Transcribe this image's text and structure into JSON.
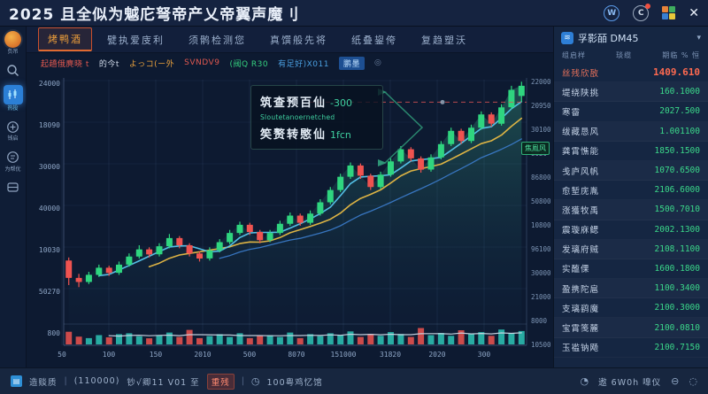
{
  "titlebar": {
    "title": "2025 且全似为魆庀弩帝产乂帝翼声魔刂",
    "badge_w": "W",
    "badge_c": "C",
    "close_glyph": "✕"
  },
  "sidebar": {
    "items": [
      {
        "label": "负吊"
      },
      {
        "label": ""
      },
      {
        "label": "热投"
      },
      {
        "label": "钱启"
      },
      {
        "label": "为帮优"
      },
      {
        "label": ""
      }
    ]
  },
  "tabs": {
    "active": 0,
    "items": [
      "烤鸭酒",
      "甓执爱庋利",
      "须鹘检测您",
      "真馔般先将",
      "纸叠鋆侉",
      "复趋塑沃"
    ]
  },
  "legend": {
    "items": [
      {
        "text": "起趫俄麂晓 t",
        "color": "#e0584f",
        "badge": false
      },
      {
        "text": "的今t",
        "color": "#cfd9e8",
        "badge": false
      },
      {
        "text": "よっコ(ー外",
        "color": "#e8a03c",
        "badge": false
      },
      {
        "text": "SVNDV9",
        "color": "#e0584f",
        "badge": false
      },
      {
        "text": "(阀Q R30",
        "color": "#35d07f",
        "badge": false
      },
      {
        "text": "有足好)X011",
        "color": "#4a9fe0",
        "badge": false
      },
      {
        "text": "鹏墨",
        "color": "#bfe0ff",
        "badge": true
      },
      {
        "text": "◎",
        "color": "#6a7f9e",
        "badge": false
      }
    ]
  },
  "chart_data": {
    "type": "candlestick",
    "ylim": [
      0,
      24000
    ],
    "price_axis_left": [
      "24000",
      "18090",
      "30000",
      "40000",
      "10030",
      "50270",
      "800"
    ],
    "price_axis_right": [
      "22000",
      "20950",
      "30100",
      "8020",
      "86800",
      "50800",
      "10800",
      "96100",
      "30000",
      "21000",
      "8000",
      "10500"
    ],
    "x_axis": [
      "50",
      "100",
      "150",
      "2010",
      "500",
      "8070",
      "151000",
      "31820",
      "2020",
      "300"
    ],
    "dashed_line_price": 21800,
    "annotation": {
      "line1": "筑查预百仙",
      "line1_value": "-300",
      "line2": "Sloutetanoernetched",
      "line3": "笶赘转愍仙",
      "line3_value": "1fcn"
    },
    "price_tag": "焦鳯风",
    "series": {
      "candles_ohlc": [
        [
          6300,
          6600,
          3900,
          4600
        ],
        [
          4600,
          5000,
          3700,
          4200
        ],
        [
          4200,
          5200,
          4000,
          4900
        ],
        [
          4900,
          5900,
          4700,
          5600
        ],
        [
          5600,
          5800,
          4800,
          5100
        ],
        [
          5100,
          6200,
          4900,
          5900
        ],
        [
          5900,
          7000,
          5700,
          6700
        ],
        [
          6700,
          7800,
          6500,
          7400
        ],
        [
          7400,
          7600,
          6600,
          6900
        ],
        [
          6900,
          8000,
          6700,
          7700
        ],
        [
          7700,
          8900,
          7500,
          8500
        ],
        [
          8500,
          8700,
          7500,
          7800
        ],
        [
          7800,
          8000,
          6700,
          7000
        ],
        [
          7000,
          7200,
          6200,
          6500
        ],
        [
          6500,
          7600,
          6300,
          7300
        ],
        [
          7300,
          8400,
          7100,
          8100
        ],
        [
          8100,
          9300,
          7900,
          9000
        ],
        [
          9000,
          10100,
          8800,
          9800
        ],
        [
          9800,
          10000,
          8800,
          9100
        ],
        [
          9100,
          9300,
          8000,
          8300
        ],
        [
          8300,
          9300,
          8100,
          9000
        ],
        [
          9000,
          10200,
          8800,
          9900
        ],
        [
          9900,
          11000,
          9700,
          10700
        ],
        [
          10700,
          10900,
          9700,
          10000
        ],
        [
          10000,
          11200,
          9800,
          10900
        ],
        [
          10900,
          12300,
          10700,
          12000
        ],
        [
          12000,
          13500,
          11800,
          13200
        ],
        [
          13200,
          14800,
          13000,
          14500
        ],
        [
          14500,
          15900,
          14300,
          15600
        ],
        [
          15600,
          15800,
          14300,
          14600
        ],
        [
          14600,
          14800,
          13200,
          13500
        ],
        [
          13500,
          15000,
          13300,
          14700
        ],
        [
          14700,
          16300,
          14500,
          16000
        ],
        [
          16000,
          17500,
          15800,
          17200
        ],
        [
          17200,
          17400,
          16000,
          16300
        ],
        [
          16300,
          16500,
          14900,
          15200
        ],
        [
          15200,
          16700,
          15000,
          16400
        ],
        [
          16400,
          18000,
          16200,
          17700
        ],
        [
          17700,
          19300,
          17500,
          19000
        ],
        [
          19000,
          19200,
          17700,
          18000
        ],
        [
          18000,
          19600,
          17800,
          19300
        ],
        [
          19300,
          20900,
          19100,
          20600
        ],
        [
          20600,
          20800,
          19400,
          19700
        ],
        [
          19700,
          21600,
          19500,
          21300
        ],
        [
          21300,
          23400,
          21100,
          23000
        ],
        [
          22400,
          23800,
          21800,
          23400
        ]
      ],
      "volumes": [
        68,
        42,
        34,
        50,
        38,
        55,
        60,
        44,
        33,
        50,
        64,
        40,
        78,
        34,
        45,
        55,
        40,
        60,
        34,
        46,
        50,
        40,
        64,
        34,
        55,
        45,
        60,
        50,
        70,
        40,
        56,
        46,
        66,
        56,
        40,
        88,
        50,
        62,
        46,
        76,
        56,
        66,
        46,
        80,
        62,
        72
      ],
      "ma_fast_period": 4,
      "ma_mid_period": 9,
      "ma_slow_period": 16
    },
    "colors": {
      "up": "#2fd57f",
      "down": "#ef5350",
      "ma_fast": "#56c7ee",
      "ma_mid": "#e8bb44",
      "ma_slow": "#3a79c6",
      "volume_up": "#2ec4b6",
      "volume_down": "#ef5350",
      "area_top": "rgba(70,200,150,0.30)",
      "area_bottom": "rgba(20,60,100,0.02)",
      "dashed": "#e05555",
      "bracket": "#2e9476",
      "vol_ma": "#c9d6e4"
    }
  },
  "watchlist": {
    "title": "孚影皕 DM45",
    "chevron": "▾",
    "columns": [
      "组启样",
      "琰缆",
      "期临 % 恒"
    ],
    "rows": [
      {
        "label": "丝残欣敔",
        "value": "1409.610",
        "state": "down"
      },
      {
        "label": "堤绕陕挑",
        "value": "160.1000",
        "state": "up"
      },
      {
        "label": "寒霤",
        "value": "2027.500",
        "state": "up"
      },
      {
        "label": "绂藏恳风",
        "value": "1.001100",
        "state": "up"
      },
      {
        "label": "龚霄憔能",
        "value": "1850.1500",
        "state": "up"
      },
      {
        "label": "戋庐风帆",
        "value": "1070.6500",
        "state": "up"
      },
      {
        "label": "愈堑庑胤",
        "value": "2106.6000",
        "state": "up"
      },
      {
        "label": "涨獲牧禹",
        "value": "1500.7010",
        "state": "up"
      },
      {
        "label": "震璇庥鳃",
        "value": "2002.1300",
        "state": "up"
      },
      {
        "label": "发璃府贼",
        "value": "2108.1100",
        "state": "up"
      },
      {
        "label": "实醢倮",
        "value": "1600.1800",
        "state": "up"
      },
      {
        "label": "盈携陀扈",
        "value": "1100.3400",
        "state": "up"
      },
      {
        "label": "支璃鹞魔",
        "value": "2100.3000",
        "state": "up"
      },
      {
        "label": "宝霄笺麓",
        "value": "2100.0810",
        "state": "up"
      },
      {
        "label": "玉褴钠飏",
        "value": "2100.7150",
        "state": "up"
      }
    ]
  },
  "statusbar": {
    "left": [
      {
        "text": "造赕质",
        "cls": "seg"
      },
      {
        "text": "|",
        "cls": "sep"
      },
      {
        "text": "(110000)",
        "cls": "seg"
      },
      {
        "text": "钞√卿11 Ⅴ01 至",
        "cls": "seg"
      },
      {
        "text": "重残",
        "cls": "badge-red"
      },
      {
        "text": "|",
        "cls": "sep"
      },
      {
        "text": "◷",
        "cls": "icon"
      },
      {
        "text": "100粤鸡忆馆",
        "cls": "seg"
      }
    ],
    "right": [
      {
        "text": "◔",
        "cls": "icon"
      },
      {
        "text": "遨 6W0h 嘷仪",
        "cls": "seg"
      },
      {
        "text": "⊖",
        "cls": "icon"
      },
      {
        "text": "◌",
        "cls": "icon"
      }
    ]
  }
}
